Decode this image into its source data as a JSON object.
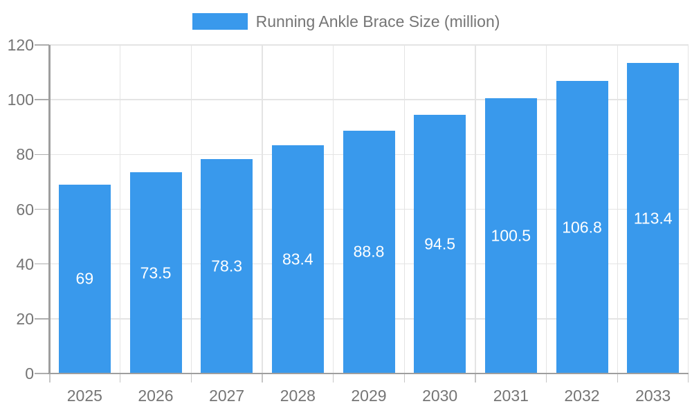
{
  "chart_data": {
    "type": "bar",
    "title": "Running Ankle Brace Size (million)",
    "legend": {
      "position": "top",
      "label": "Running Ankle Brace Size (million)"
    },
    "categories": [
      "2025",
      "2026",
      "2027",
      "2028",
      "2029",
      "2030",
      "2031",
      "2032",
      "2033"
    ],
    "values": [
      69,
      73.5,
      78.3,
      83.4,
      88.8,
      94.5,
      100.5,
      106.8,
      113.4
    ],
    "value_labels": [
      "69",
      "73.5",
      "78.3",
      "83.4",
      "88.8",
      "94.5",
      "100.5",
      "106.8",
      "113.4"
    ],
    "xlabel": "",
    "ylabel": "",
    "ylim": [
      0,
      120
    ],
    "yticks": [
      0,
      20,
      40,
      60,
      80,
      100,
      120
    ],
    "grid": true,
    "value_labels_inside_bars": true,
    "colors": {
      "bar": "#3999EC",
      "grid": "#E4E4E4",
      "axis": "#9E9E9E",
      "y_tick": "#ADADAD",
      "x_tick": "#C6C6C6",
      "text": "#757575",
      "value_text": "#FFFFFF",
      "background": "#FFFFFF"
    }
  }
}
